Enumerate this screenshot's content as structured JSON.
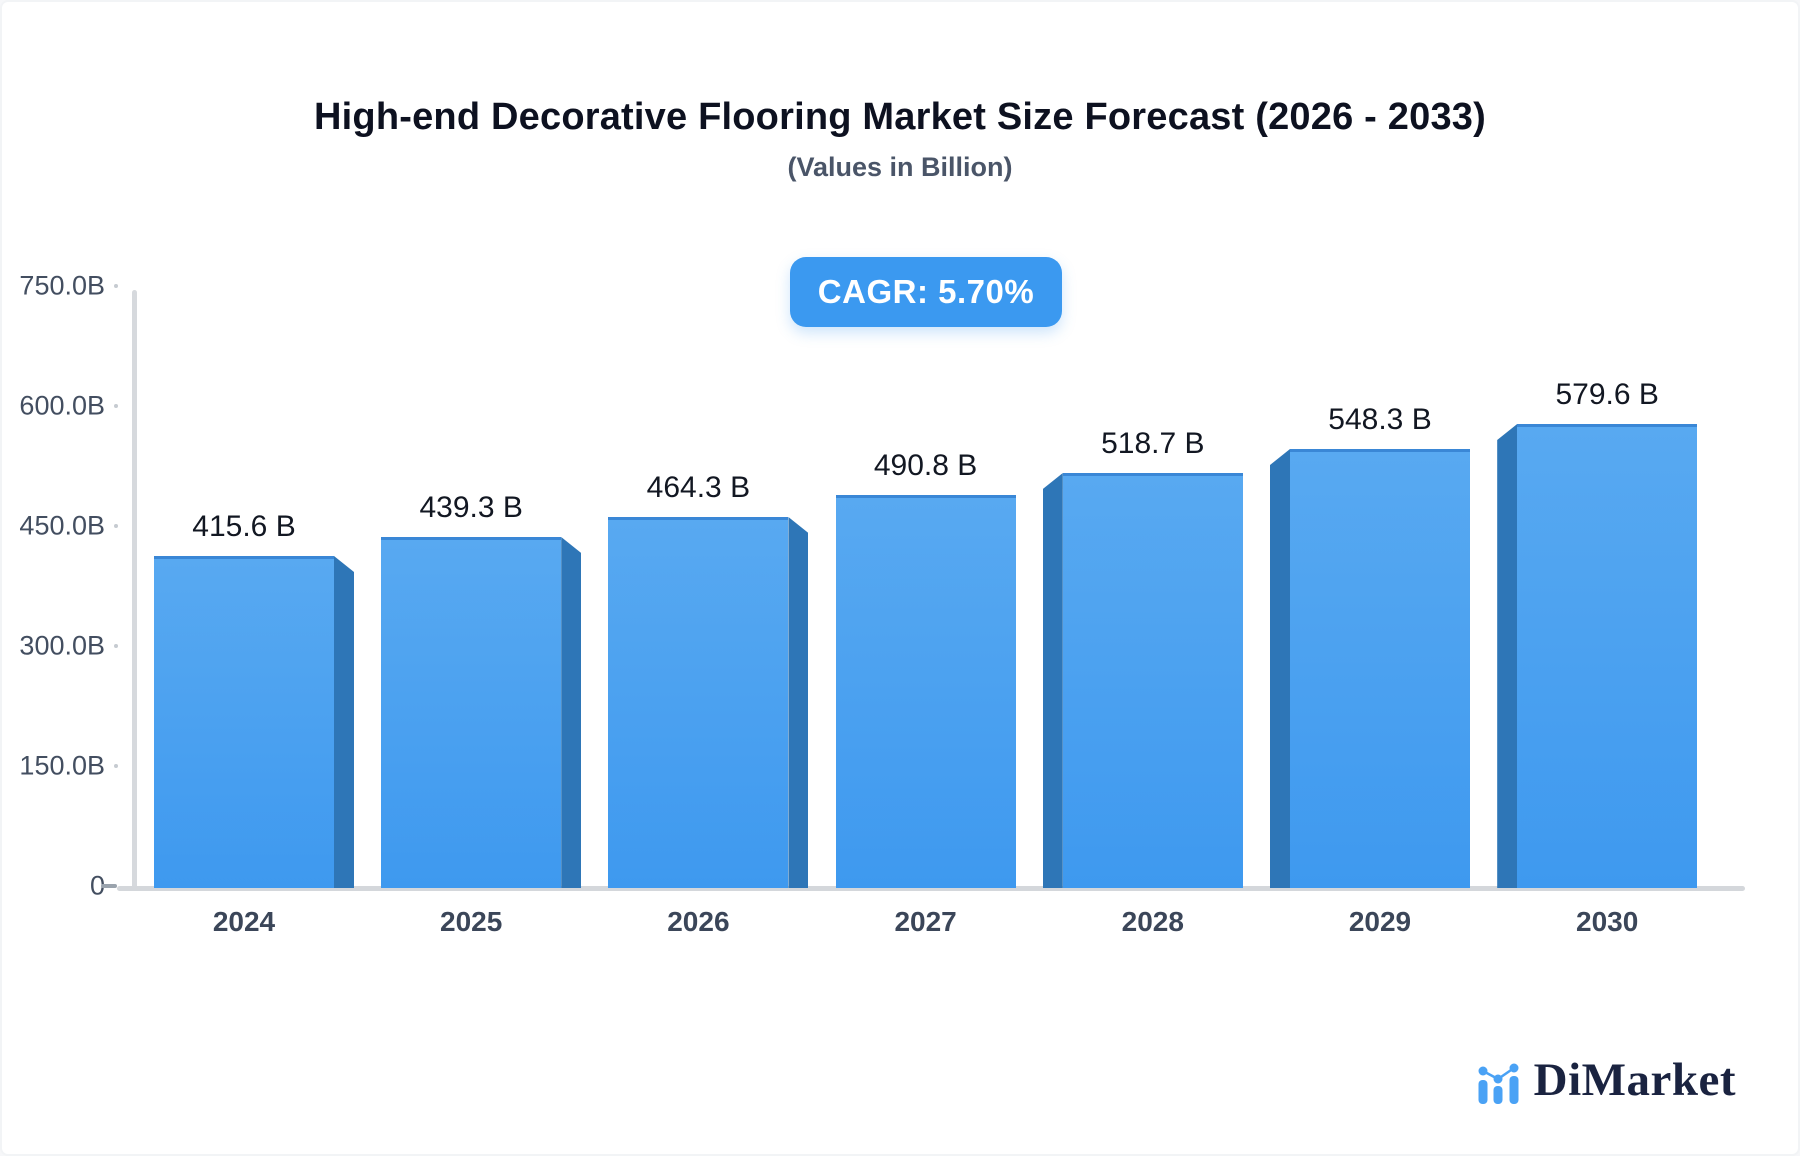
{
  "header": {
    "title": "High-end Decorative Flooring Market Size Forecast (2026 - 2033)",
    "subtitle": "(Values in Billion)"
  },
  "badge": {
    "label": "CAGR: 5.70%"
  },
  "chart_data": {
    "type": "bar",
    "categories": [
      "2024",
      "2025",
      "2026",
      "2027",
      "2028",
      "2029",
      "2030"
    ],
    "values": [
      415.6,
      439.3,
      464.3,
      490.8,
      518.7,
      548.3,
      579.6
    ],
    "value_labels": [
      "415.6 B",
      "439.3 B",
      "464.3 B",
      "490.8 B",
      "518.7 B",
      "548.3 B",
      "579.6 B"
    ],
    "ytick_labels": [
      "750.0B",
      "600.0B",
      "450.0B",
      "300.0B",
      "150.0B",
      "0"
    ],
    "ytick_values": [
      750,
      600,
      450,
      300,
      150,
      0
    ],
    "ylim": [
      0,
      750
    ],
    "xlabel": "",
    "ylabel": "",
    "grid": false,
    "legend": false,
    "style": "3d-bars-center-perspective"
  },
  "colors": {
    "badge_bg": "#3b99f0",
    "bar_face_top": "#58a9f1",
    "bar_face_bottom": "#3e99ef",
    "bar_side": "#2e76b7",
    "bar_top_edge": "#3a87d6",
    "axis": "#d6d9dd",
    "value_text": "#121722",
    "tick_text": "#434e60"
  },
  "logo": {
    "text": "DiMarket",
    "icon": "bar-line-chart-icon"
  }
}
